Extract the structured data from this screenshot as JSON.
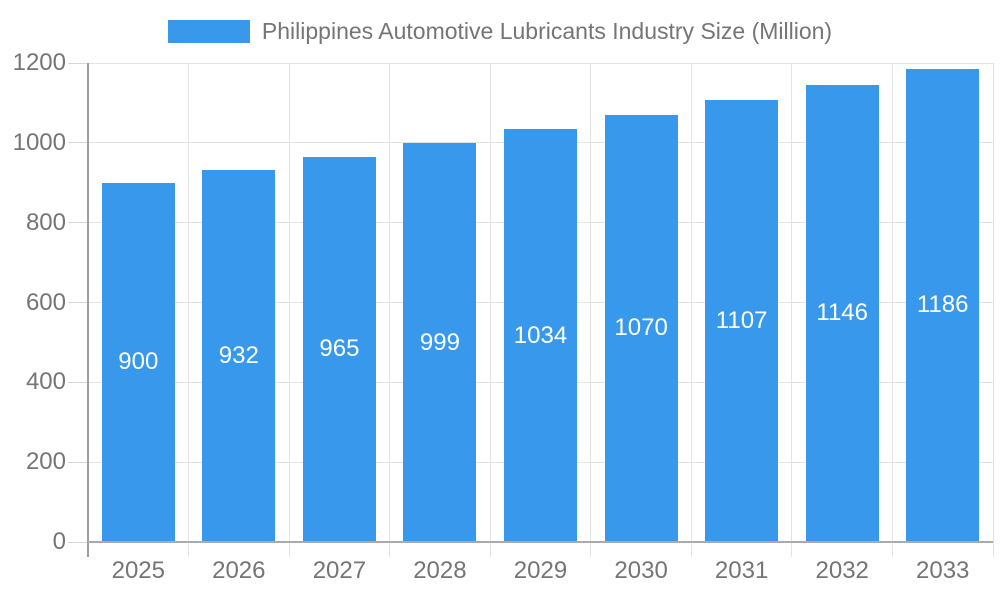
{
  "chart_data": {
    "type": "bar",
    "title": "Philippines Automotive Lubricants Industry Size (Million)",
    "categories": [
      "2025",
      "2026",
      "2027",
      "2028",
      "2029",
      "2030",
      "2031",
      "2032",
      "2033"
    ],
    "values": [
      900,
      932,
      965,
      999,
      1034,
      1070,
      1107,
      1146,
      1186
    ],
    "yticks": [
      0,
      200,
      400,
      600,
      800,
      1000,
      1200
    ],
    "ylim": [
      0,
      1200
    ],
    "ytick_step": 200,
    "xlabel": "",
    "ylabel": "",
    "grid": true,
    "legend_position": "top-center",
    "value_labels": "centered-inside-bars",
    "colors": {
      "bar": "#3899ec",
      "value_label": "#ffffff",
      "axis_label": "#757575",
      "legend_text": "#757575",
      "gridline": "#e3e3e3",
      "y_axis_line": "#9e9e9e",
      "x_axis_line": "#aaaaaa"
    }
  }
}
